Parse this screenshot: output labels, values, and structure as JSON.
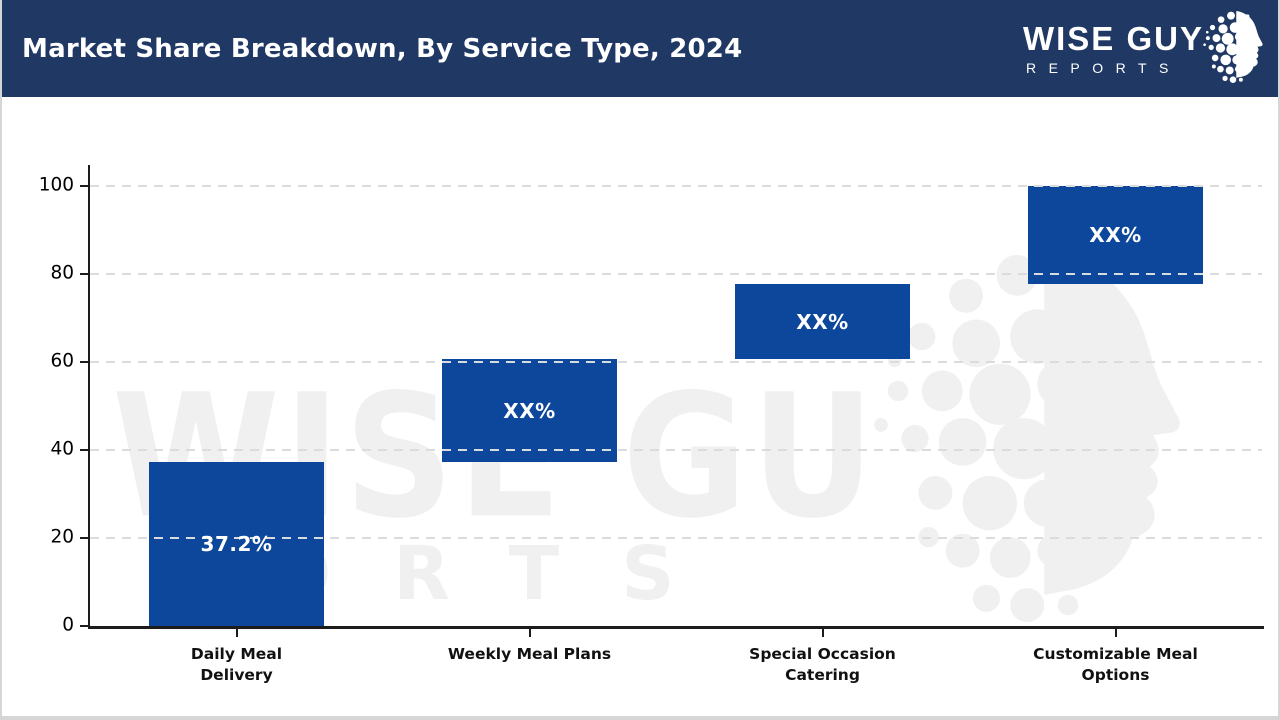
{
  "header": {
    "title": "Market Share Breakdown, By Service Type, 2024",
    "bg_color": "#1f3864",
    "logo": {
      "wise_guy": "WISE GUY",
      "reports": "REPORTS"
    }
  },
  "watermark": {
    "wise_guy": "WISE GU",
    "reports": "PORTS"
  },
  "chart_data": {
    "type": "bar",
    "subtype": "waterfall",
    "title": "Market Share Breakdown, By Service Type, 2024",
    "categories": [
      "Daily Meal\nDelivery",
      "Weekly Meal Plans",
      "Special Occasion\nCatering",
      "Customizable Meal\nOptions"
    ],
    "segments": [
      {
        "category": "Daily Meal Delivery",
        "start": 0,
        "end": 37.2,
        "label": "37.2%"
      },
      {
        "category": "Weekly Meal Plans",
        "start": 37.2,
        "end": 60.6,
        "label": "XX%"
      },
      {
        "category": "Special Occasion Catering",
        "start": 60.6,
        "end": 77.8,
        "label": "XX%"
      },
      {
        "category": "Customizable Meal Options",
        "start": 77.8,
        "end": 100,
        "label": "XX%"
      }
    ],
    "yticks": [
      0,
      20,
      40,
      60,
      80,
      100
    ],
    "ylim": [
      0,
      104.8
    ],
    "xlabel": "",
    "ylabel": "",
    "legend": "none",
    "grid": {
      "axis": "y",
      "style": "dashed",
      "color": "#dcdcdc"
    },
    "colors": {
      "bar": "#0d479c",
      "bar_label": "#ffffff",
      "axis": "#1c1c1c",
      "tick_label": "#000000",
      "header_bg": "#1f3864",
      "watermark": "#f0f0f0"
    }
  }
}
